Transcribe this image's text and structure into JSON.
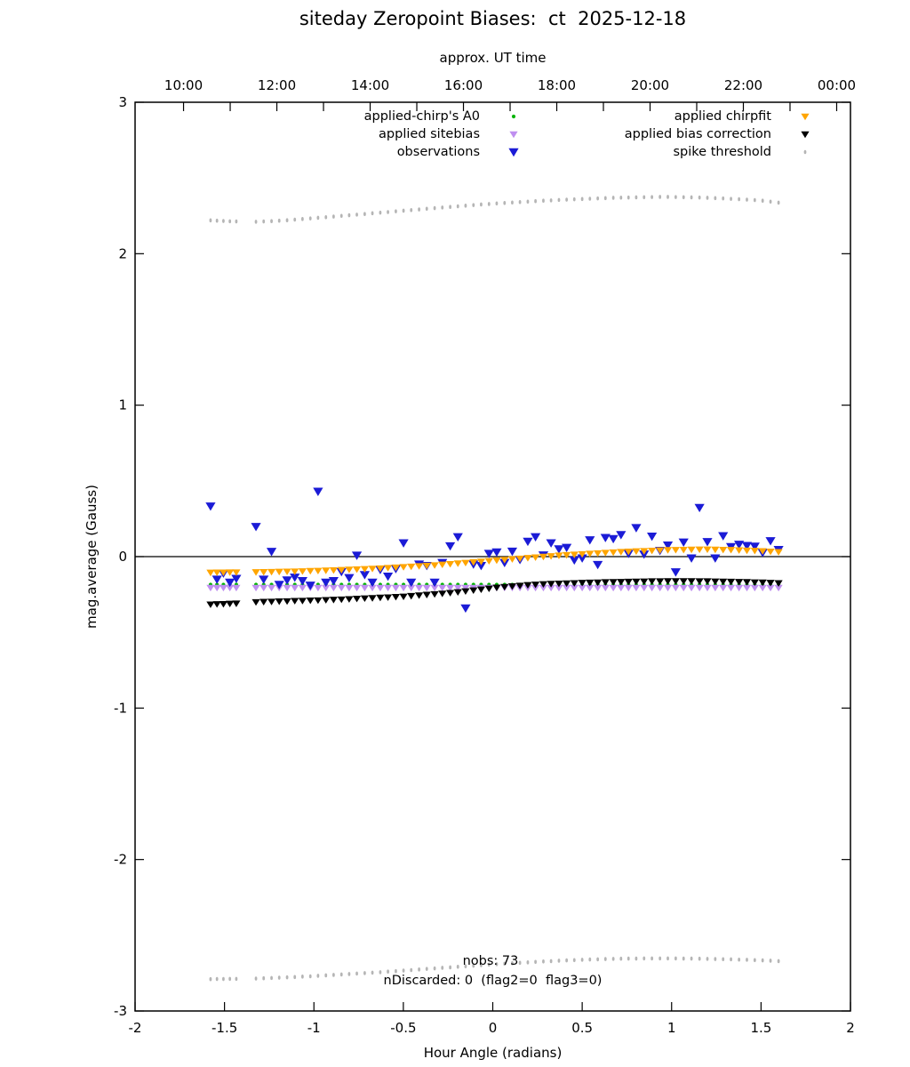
{
  "chart_data": {
    "type": "scatter",
    "title": "siteday Zeropoint Biases:  ct  2025-12-18",
    "x_axis": {
      "label": "Hour Angle (radians)",
      "min": -2,
      "max": 2,
      "ticks": [
        "-2",
        "-1.5",
        "-1",
        "-0.5",
        "0",
        "0.5",
        "1",
        "1.5",
        "2"
      ]
    },
    "x2_axis": {
      "label": "approx. UT time",
      "tick_labels": [
        "10:00",
        "12:00",
        "14:00",
        "16:00",
        "18:00",
        "20:00",
        "22:00",
        "00:00"
      ],
      "first_tick_ha": -1.729,
      "hour_step_ha": 0.26085,
      "n_hour_ticks": 15
    },
    "y_axis": {
      "label": "mag.average (Gauss)",
      "min": -3,
      "max": 3,
      "ticks": [
        "-3",
        "-2",
        "-1",
        "0",
        "1",
        "2",
        "3"
      ]
    },
    "zero_line": true,
    "grid": false,
    "legend_position": "top-inside-two-columns",
    "annotations": {
      "nobs": "nobs: 73",
      "ndiscarded": "nDiscarded: 0  (flag2=0  flag3=0)"
    },
    "x": [
      -1.578,
      -1.542,
      -1.506,
      -1.47,
      -1.434,
      -1.324,
      -1.281,
      -1.237,
      -1.194,
      -1.15,
      -1.107,
      -1.064,
      -1.02,
      -0.977,
      -0.933,
      -0.89,
      -0.846,
      -0.803,
      -0.76,
      -0.716,
      -0.673,
      -0.629,
      -0.586,
      -0.542,
      -0.499,
      -0.456,
      -0.412,
      -0.369,
      -0.325,
      -0.282,
      -0.238,
      -0.195,
      -0.152,
      -0.108,
      -0.065,
      -0.021,
      0.022,
      0.066,
      0.109,
      0.152,
      0.196,
      0.239,
      0.283,
      0.326,
      0.37,
      0.413,
      0.456,
      0.5,
      0.543,
      0.587,
      0.63,
      0.674,
      0.717,
      0.759,
      0.802,
      0.846,
      0.89,
      0.935,
      0.979,
      1.023,
      1.067,
      1.111,
      1.156,
      1.2,
      1.244,
      1.288,
      1.332,
      1.377,
      1.421,
      1.465,
      1.509,
      1.553,
      1.598
    ],
    "series": [
      {
        "id": "a0",
        "name": "applied-chirp's A0",
        "marker": "dot",
        "color": "#00b400",
        "constant": -0.185
      },
      {
        "id": "sitebias",
        "name": "applied sitebias",
        "marker": "triangle",
        "color": "#bf8ff0",
        "constant": -0.205
      },
      {
        "id": "observations",
        "name": "observations",
        "marker": "triangle_big",
        "color": "#1b1bd6",
        "y": [
          0.333,
          -0.15,
          -0.11,
          -0.17,
          -0.145,
          0.198,
          -0.15,
          0.033,
          -0.185,
          -0.155,
          -0.137,
          -0.16,
          -0.19,
          0.43,
          -0.17,
          -0.16,
          -0.1,
          -0.14,
          0.008,
          -0.12,
          -0.17,
          -0.086,
          -0.13,
          -0.08,
          0.09,
          -0.17,
          -0.05,
          -0.06,
          -0.17,
          -0.04,
          0.07,
          0.13,
          -0.34,
          -0.05,
          -0.06,
          0.02,
          0.03,
          -0.04,
          0.035,
          -0.02,
          0.1,
          0.13,
          0.01,
          0.09,
          0.05,
          0.06,
          -0.023,
          -0.01,
          0.11,
          -0.053,
          0.125,
          0.118,
          0.144,
          0.02,
          0.19,
          0.016,
          0.134,
          0.04,
          0.075,
          -0.102,
          0.095,
          -0.01,
          0.323,
          0.098,
          -0.01,
          0.137,
          0.065,
          0.08,
          0.072,
          0.068,
          0.026,
          0.104,
          0.046
        ]
      },
      {
        "id": "chirpfit",
        "name": "applied chirpfit",
        "marker": "triangle",
        "color": "#ffa500",
        "y": [
          -0.105,
          -0.104,
          -0.104,
          -0.103,
          -0.103,
          -0.102,
          -0.101,
          -0.1,
          -0.099,
          -0.098,
          -0.097,
          -0.096,
          -0.094,
          -0.093,
          -0.091,
          -0.089,
          -0.087,
          -0.085,
          -0.083,
          -0.081,
          -0.079,
          -0.077,
          -0.074,
          -0.071,
          -0.068,
          -0.065,
          -0.062,
          -0.059,
          -0.056,
          -0.052,
          -0.048,
          -0.044,
          -0.04,
          -0.036,
          -0.032,
          -0.028,
          -0.024,
          -0.02,
          -0.016,
          -0.012,
          -0.008,
          -0.004,
          0.0,
          0.004,
          0.008,
          0.011,
          0.014,
          0.017,
          0.02,
          0.023,
          0.026,
          0.029,
          0.032,
          0.034,
          0.036,
          0.038,
          0.04,
          0.042,
          0.044,
          0.045,
          0.046,
          0.047,
          0.048,
          0.048,
          0.047,
          0.046,
          0.045,
          0.043,
          0.041,
          0.039,
          0.037,
          0.034,
          0.031
        ]
      },
      {
        "id": "bias-correction",
        "name": "applied bias correction",
        "marker": "triangle",
        "color": "#000000",
        "y": [
          -0.315,
          -0.313,
          -0.312,
          -0.31,
          -0.309,
          -0.3,
          -0.298,
          -0.297,
          -0.295,
          -0.294,
          -0.292,
          -0.291,
          -0.289,
          -0.288,
          -0.286,
          -0.284,
          -0.282,
          -0.28,
          -0.277,
          -0.275,
          -0.273,
          -0.27,
          -0.268,
          -0.265,
          -0.263,
          -0.259,
          -0.255,
          -0.251,
          -0.247,
          -0.243,
          -0.239,
          -0.234,
          -0.228,
          -0.222,
          -0.216,
          -0.21,
          -0.204,
          -0.199,
          -0.195,
          -0.191,
          -0.187,
          -0.184,
          -0.181,
          -0.179,
          -0.177,
          -0.176,
          -0.174,
          -0.172,
          -0.171,
          -0.17,
          -0.168,
          -0.167,
          -0.166,
          -0.165,
          -0.164,
          -0.163,
          -0.162,
          -0.162,
          -0.161,
          -0.161,
          -0.161,
          -0.161,
          -0.162,
          -0.162,
          -0.163,
          -0.164,
          -0.165,
          -0.166,
          -0.167,
          -0.169,
          -0.17,
          -0.172,
          -0.174
        ]
      },
      {
        "id": "spike-threshold",
        "name": "spike threshold",
        "marker": "smalldot",
        "color": "#b5b5b5",
        "y_upper": [
          2.22,
          2.218,
          2.216,
          2.214,
          2.213,
          2.211,
          2.213,
          2.215,
          2.218,
          2.221,
          2.225,
          2.229,
          2.233,
          2.237,
          2.241,
          2.245,
          2.25,
          2.254,
          2.258,
          2.262,
          2.267,
          2.271,
          2.275,
          2.28,
          2.284,
          2.288,
          2.292,
          2.297,
          2.301,
          2.305,
          2.309,
          2.313,
          2.317,
          2.321,
          2.325,
          2.328,
          2.332,
          2.335,
          2.338,
          2.341,
          2.344,
          2.347,
          2.35,
          2.352,
          2.355,
          2.357,
          2.359,
          2.361,
          2.363,
          2.365,
          2.367,
          2.369,
          2.37,
          2.371,
          2.372,
          2.373,
          2.374,
          2.375,
          2.375,
          2.374,
          2.373,
          2.372,
          2.371,
          2.369,
          2.367,
          2.365,
          2.362,
          2.36,
          2.357,
          2.354,
          2.35,
          2.344,
          2.337
        ],
        "y_lower": [
          -2.79,
          -2.789,
          -2.789,
          -2.788,
          -2.788,
          -2.786,
          -2.784,
          -2.782,
          -2.78,
          -2.778,
          -2.776,
          -2.773,
          -2.771,
          -2.768,
          -2.765,
          -2.762,
          -2.759,
          -2.756,
          -2.753,
          -2.75,
          -2.747,
          -2.744,
          -2.74,
          -2.737,
          -2.733,
          -2.73,
          -2.726,
          -2.722,
          -2.719,
          -2.715,
          -2.712,
          -2.708,
          -2.705,
          -2.701,
          -2.698,
          -2.694,
          -2.691,
          -2.688,
          -2.685,
          -2.682,
          -2.679,
          -2.676,
          -2.673,
          -2.671,
          -2.668,
          -2.666,
          -2.664,
          -2.662,
          -2.66,
          -2.659,
          -2.657,
          -2.656,
          -2.655,
          -2.654,
          -2.654,
          -2.653,
          -2.653,
          -2.653,
          -2.653,
          -2.653,
          -2.654,
          -2.654,
          -2.655,
          -2.656,
          -2.657,
          -2.658,
          -2.659,
          -2.661,
          -2.662,
          -2.664,
          -2.666,
          -2.668,
          -2.671
        ]
      }
    ]
  }
}
